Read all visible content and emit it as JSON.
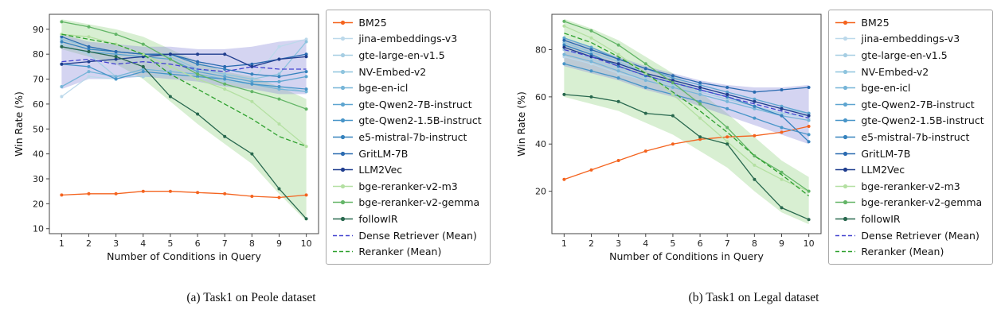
{
  "figure": {
    "captions": [
      "(a) Task1 on Peole dataset",
      "(b) Task1 on Legal dataset"
    ]
  },
  "legend": {
    "entries": [
      {
        "label": "BM25",
        "color": "#f4631e",
        "dash": false,
        "marker": true
      },
      {
        "label": "jina-embeddings-v3",
        "color": "#bcd9eb",
        "dash": false,
        "marker": true
      },
      {
        "label": "gte-large-en-v1.5",
        "color": "#a6cee3",
        "dash": false,
        "marker": true
      },
      {
        "label": "NV-Embed-v2",
        "color": "#8ec4de",
        "dash": false,
        "marker": true
      },
      {
        "label": "bge-en-icl",
        "color": "#76b5d8",
        "dash": false,
        "marker": true
      },
      {
        "label": "gte-Qwen2-7B-instruct",
        "color": "#5ea5d0",
        "dash": false,
        "marker": true
      },
      {
        "label": "gte-Qwen2-1.5B-instruct",
        "color": "#4895c8",
        "dash": false,
        "marker": true
      },
      {
        "label": "e5-mistral-7b-instruct",
        "color": "#3582bd",
        "dash": false,
        "marker": true
      },
      {
        "label": "GritLM-7B",
        "color": "#2a6ab0",
        "dash": false,
        "marker": true
      },
      {
        "label": "LLM2Vec",
        "color": "#1f3d8e",
        "dash": false,
        "marker": true
      },
      {
        "label": "bge-reranker-v2-m3",
        "color": "#b4e0a2",
        "dash": false,
        "marker": true
      },
      {
        "label": "bge-reranker-v2-gemma",
        "color": "#63b567",
        "dash": false,
        "marker": true
      },
      {
        "label": "followIR",
        "color": "#28684e",
        "dash": false,
        "marker": true
      },
      {
        "label": "Dense Retriever (Mean)",
        "color": "#4343cf",
        "dash": true,
        "marker": false
      },
      {
        "label": "Reranker (Mean)",
        "color": "#2da02d",
        "dash": true,
        "marker": false
      }
    ]
  },
  "chart_data": [
    {
      "type": "line",
      "title": "",
      "xlabel": "Number of Conditions in Query",
      "ylabel": "Win Rate (%)",
      "x": [
        1,
        2,
        3,
        4,
        5,
        6,
        7,
        8,
        9,
        10
      ],
      "xlim": [
        0.55,
        10.45
      ],
      "ylim": [
        8,
        96
      ],
      "yticks": [
        10,
        20,
        30,
        40,
        50,
        60,
        70,
        80,
        90
      ],
      "grid": false,
      "legend_position": "outside-right",
      "bands": [
        {
          "name": "reranker-band",
          "color": "#b2e0a6",
          "opacity": 0.5,
          "upper": [
            94,
            92,
            90,
            87,
            82,
            77,
            73,
            71,
            67,
            62
          ],
          "lower": [
            82,
            79,
            76,
            70,
            61,
            52,
            44,
            36,
            24,
            13
          ]
        },
        {
          "name": "dense-retriever-band",
          "color": "#8d8ddb",
          "opacity": 0.38,
          "upper": [
            88,
            85,
            84,
            83,
            83,
            82,
            82,
            83,
            85,
            86
          ],
          "lower": [
            66,
            70,
            70,
            71,
            70,
            69,
            67,
            66,
            64,
            64
          ]
        }
      ],
      "series": [
        {
          "name": "BM25",
          "values": [
            23.5,
            24,
            24,
            25,
            25,
            24.5,
            24,
            23,
            22.5,
            23.5
          ]
        },
        {
          "name": "jina-embeddings-v3",
          "values": [
            63,
            71,
            70,
            73,
            72,
            71,
            70,
            69,
            83,
            86
          ]
        },
        {
          "name": "gte-large-en-v1.5",
          "values": [
            84,
            80,
            71,
            71,
            72,
            71,
            69,
            68,
            67,
            65
          ]
        },
        {
          "name": "NV-Embed-v2",
          "values": [
            86,
            83,
            81,
            80,
            79,
            74,
            72,
            70,
            72,
            85
          ]
        },
        {
          "name": "bge-en-icl",
          "values": [
            67,
            73,
            71,
            74,
            73,
            72,
            70,
            68,
            66,
            65
          ]
        },
        {
          "name": "gte-Qwen2-7B-instruct",
          "values": [
            83,
            81,
            80,
            79,
            78,
            73,
            71,
            69,
            69,
            71
          ]
        },
        {
          "name": "gte-Qwen2-1.5B-instruct",
          "values": [
            76,
            75,
            70,
            73,
            72,
            71,
            70,
            68,
            67,
            66
          ]
        },
        {
          "name": "e5-mistral-7b-instruct",
          "values": [
            85,
            82,
            81,
            80,
            80,
            76,
            74,
            72,
            71,
            73
          ]
        },
        {
          "name": "GritLM-7B",
          "values": [
            87,
            83,
            81,
            80,
            80,
            77,
            75,
            76,
            78,
            80
          ]
        },
        {
          "name": "LLM2Vec",
          "values": [
            76,
            77,
            78,
            79,
            80,
            80,
            80,
            75,
            78,
            79
          ]
        },
        {
          "name": "bge-reranker-v2-m3",
          "values": [
            88,
            87,
            84,
            80,
            75,
            70,
            66,
            61,
            52,
            43
          ]
        },
        {
          "name": "bge-reranker-v2-gemma",
          "values": [
            93,
            91,
            88,
            84,
            78,
            72,
            68,
            65,
            62,
            58
          ]
        },
        {
          "name": "followIR",
          "values": [
            83,
            81,
            79,
            75,
            63,
            56,
            47,
            40,
            26,
            14
          ]
        },
        {
          "name": "Dense Retriever (Mean)",
          "values": [
            77,
            78,
            76,
            77,
            76,
            74,
            73,
            75,
            74,
            74
          ]
        },
        {
          "name": "Reranker (Mean)",
          "values": [
            88,
            86,
            84,
            80,
            72,
            66,
            60,
            54,
            47,
            43
          ]
        }
      ]
    },
    {
      "type": "line",
      "title": "",
      "xlabel": "Number of Conditions in Query",
      "ylabel": "Win Rate (%)",
      "x": [
        1,
        2,
        3,
        4,
        5,
        6,
        7,
        8,
        9,
        10
      ],
      "xlim": [
        0.55,
        10.45
      ],
      "ylim": [
        2,
        95
      ],
      "yticks": [
        20,
        40,
        60,
        80
      ],
      "grid": false,
      "legend_position": "outside-right",
      "bands": [
        {
          "name": "reranker-band",
          "color": "#b2e0a6",
          "opacity": 0.5,
          "upper": [
            93,
            89,
            84,
            77,
            70,
            62,
            53,
            43,
            33,
            26
          ],
          "lower": [
            60,
            57,
            54,
            49,
            44,
            37,
            30,
            20,
            11,
            6
          ]
        },
        {
          "name": "dense-retriever-band",
          "color": "#8d8ddb",
          "opacity": 0.38,
          "upper": [
            85,
            81,
            77,
            73,
            70,
            67,
            65,
            64,
            64,
            65
          ],
          "lower": [
            73,
            70,
            67,
            63,
            60,
            56,
            52,
            48,
            44,
            40
          ]
        }
      ],
      "series": [
        {
          "name": "BM25",
          "values": [
            25,
            29,
            33,
            37,
            40,
            42,
            43,
            43.5,
            45,
            47.5
          ]
        },
        {
          "name": "jina-embeddings-v3",
          "values": [
            77,
            74,
            70,
            67,
            64,
            61,
            58,
            55,
            53,
            51
          ]
        },
        {
          "name": "gte-large-en-v1.5",
          "values": [
            80,
            76,
            72,
            68,
            65,
            62,
            59,
            56,
            53,
            52
          ]
        },
        {
          "name": "NV-Embed-v2",
          "values": [
            83,
            79,
            75,
            70,
            67,
            64,
            61,
            58,
            55,
            53
          ]
        },
        {
          "name": "bge-en-icl",
          "values": [
            78,
            75,
            71,
            67,
            64,
            61,
            58,
            55,
            52,
            50
          ]
        },
        {
          "name": "gte-Qwen2-7B-instruct",
          "values": [
            85,
            81,
            76,
            72,
            68,
            65,
            62,
            59,
            56,
            53
          ]
        },
        {
          "name": "gte-Qwen2-1.5B-instruct",
          "values": [
            74,
            71,
            68,
            64,
            61,
            58,
            55,
            51,
            47,
            44
          ]
        },
        {
          "name": "e5-mistral-7b-instruct",
          "values": [
            82,
            78,
            73,
            69,
            66,
            63,
            60,
            56,
            52,
            41
          ]
        },
        {
          "name": "GritLM-7B",
          "values": [
            84,
            80,
            76,
            72,
            69,
            66,
            64,
            62,
            63,
            64
          ]
        },
        {
          "name": "LLM2Vec",
          "values": [
            81,
            77,
            74,
            70,
            67,
            64,
            61,
            58,
            55,
            52
          ]
        },
        {
          "name": "bge-reranker-v2-m3",
          "values": [
            90,
            85,
            78,
            70,
            61,
            51,
            41,
            31,
            25,
            20
          ]
        },
        {
          "name": "bge-reranker-v2-gemma",
          "values": [
            92,
            88,
            82,
            74,
            66,
            57,
            47,
            35,
            28,
            20
          ]
        },
        {
          "name": "followIR",
          "values": [
            61,
            60,
            58,
            53,
            52,
            43,
            40,
            25,
            13,
            8
          ]
        },
        {
          "name": "Dense Retriever (Mean)",
          "values": [
            80,
            77,
            73,
            69,
            66,
            63,
            60,
            57,
            54,
            51
          ]
        },
        {
          "name": "Reranker (Mean)",
          "values": [
            87,
            83,
            77,
            70,
            62,
            54,
            45,
            35,
            27,
            18
          ]
        }
      ]
    }
  ]
}
